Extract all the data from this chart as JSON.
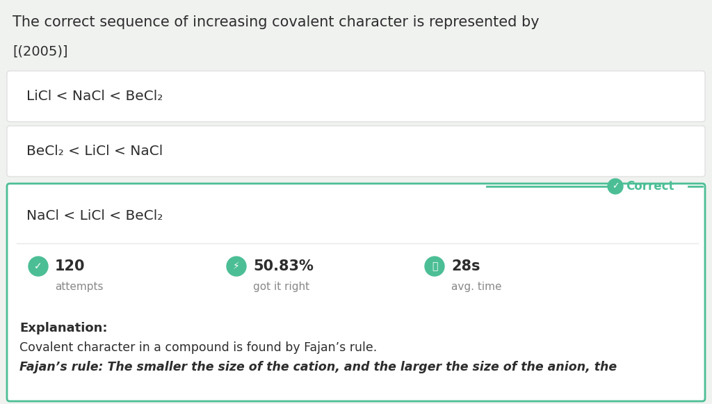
{
  "title": "The correct sequence of increasing covalent character is represented by",
  "year_tag": "[(2005)]",
  "option1": "LiCl < NaCl < BeCl₂",
  "option2": "BeCl₂ < LiCl < NaCl",
  "option3_correct": "NaCl < LiCl < BeCl₂",
  "correct_label": "Correct",
  "stat1_value": "120",
  "stat1_label": "attempts",
  "stat2_value": "50.83%",
  "stat2_label": "got it right",
  "stat3_value": "28s",
  "stat3_label": "avg. time",
  "explanation_title": "Explanation:",
  "explanation_text": "Covalent character in a compound is found by Fajan’s rule.",
  "fajans_line": "Fajan’s rule: The smaller the size of the cation, and the larger the size of the anion, the",
  "bg_color": "#f0f2f0",
  "card_bg": "#ffffff",
  "correct_card_border": "#4cbe96",
  "correct_label_color": "#4cbe96",
  "text_color": "#2d2d2d",
  "subtext_color": "#888888",
  "stat_badge_color": "#4cbe96",
  "stat_value_color": "#2d2d2d",
  "divider_color": "#e8e8e8",
  "option_border_color": "#e0e0e0"
}
